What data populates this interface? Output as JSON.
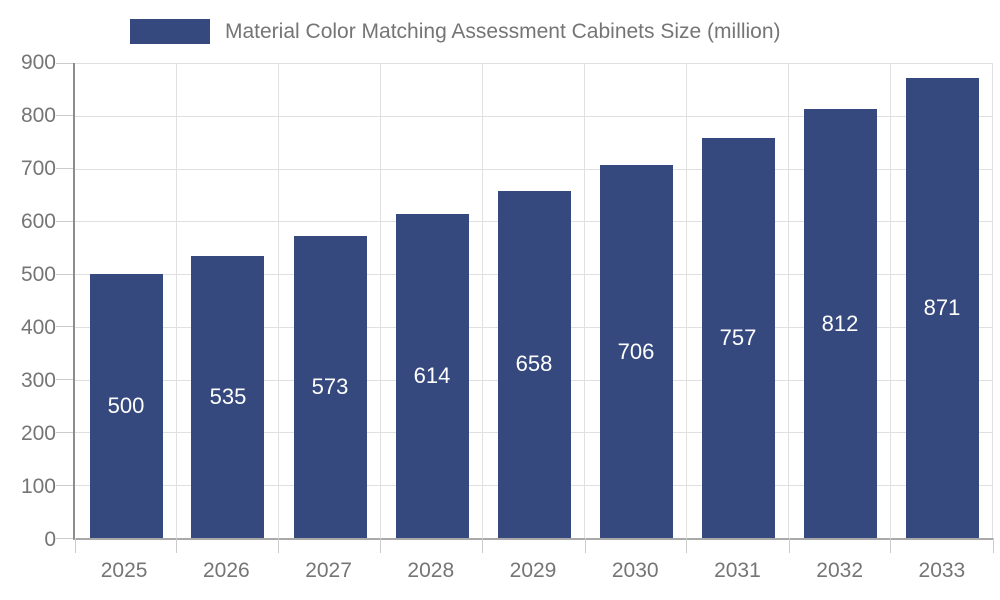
{
  "legend": {
    "label": "Material Color Matching Assessment Cabinets Size (million)"
  },
  "chart_data": {
    "type": "bar",
    "title": "Material Color Matching Assessment Cabinets Size (million)",
    "categories": [
      "2025",
      "2026",
      "2027",
      "2028",
      "2029",
      "2030",
      "2031",
      "2032",
      "2033"
    ],
    "values": [
      500,
      535,
      573,
      614,
      658,
      706,
      757,
      812,
      871
    ],
    "series": [
      {
        "name": "Material Color Matching Assessment Cabinets Size (million)",
        "values": [
          500,
          535,
          573,
          614,
          658,
          706,
          757,
          812,
          871
        ]
      }
    ],
    "xlabel": "",
    "ylabel": "",
    "ylim": [
      0,
      900
    ],
    "yticks": [
      0,
      100,
      200,
      300,
      400,
      500,
      600,
      700,
      800,
      900
    ],
    "grid": true,
    "legend_position": "top",
    "bar_color": "#36497e",
    "value_label_color": "#ffffff",
    "axis_text_color": "#757575",
    "gridline_color": "#e0e0e0"
  }
}
